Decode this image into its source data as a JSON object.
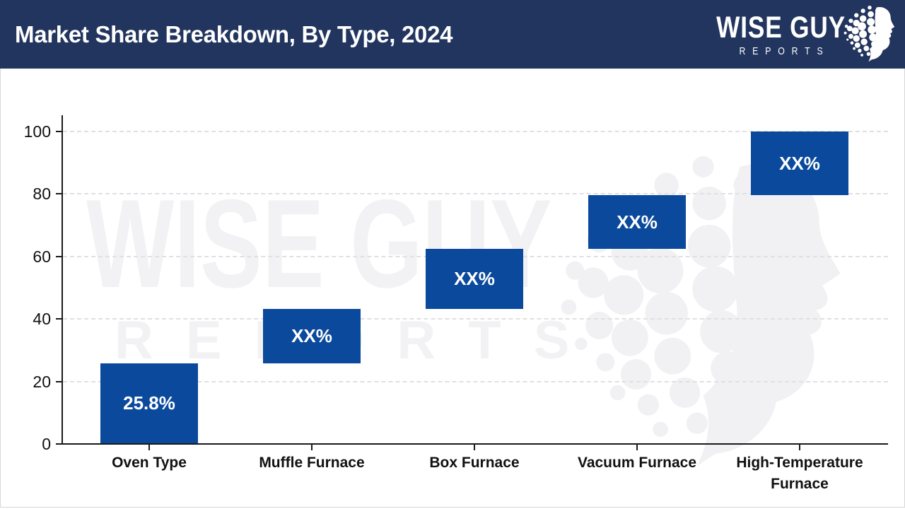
{
  "header": {
    "title": "Market Share Breakdown, By Type, 2024",
    "bg_color": "#22355f"
  },
  "logo": {
    "line1": "WISE GUY",
    "line2": "REPORTS"
  },
  "watermark": {
    "line1": "WISE GUY",
    "line2": "REPORTS"
  },
  "chart_data": {
    "type": "bar",
    "subtype": "waterfall",
    "title": "Market Share Breakdown, By Type, 2024",
    "categories": [
      "Oven Type",
      "Muffle Furnace",
      "Box Furnace",
      "Vacuum Furnace",
      "High-Temperature Furnace"
    ],
    "series": [
      {
        "name": "Market Share (%)",
        "segments": [
          {
            "start": 0,
            "end": 25.8,
            "label": "25.8%"
          },
          {
            "start": 25.8,
            "end": 43.2,
            "label": "XX%"
          },
          {
            "start": 43.2,
            "end": 62.4,
            "label": "XX%"
          },
          {
            "start": 62.4,
            "end": 79.6,
            "label": "XX%"
          },
          {
            "start": 79.6,
            "end": 100,
            "label": "XX%"
          }
        ]
      }
    ],
    "xlabel": "",
    "ylabel": "",
    "ylim": [
      0,
      105
    ],
    "yticks": [
      0,
      20,
      40,
      60,
      80,
      100
    ],
    "grid": "horizontal-dashed",
    "legend": "none",
    "bar_color": "#0b499c",
    "bar_label_color": "#ffffff"
  }
}
